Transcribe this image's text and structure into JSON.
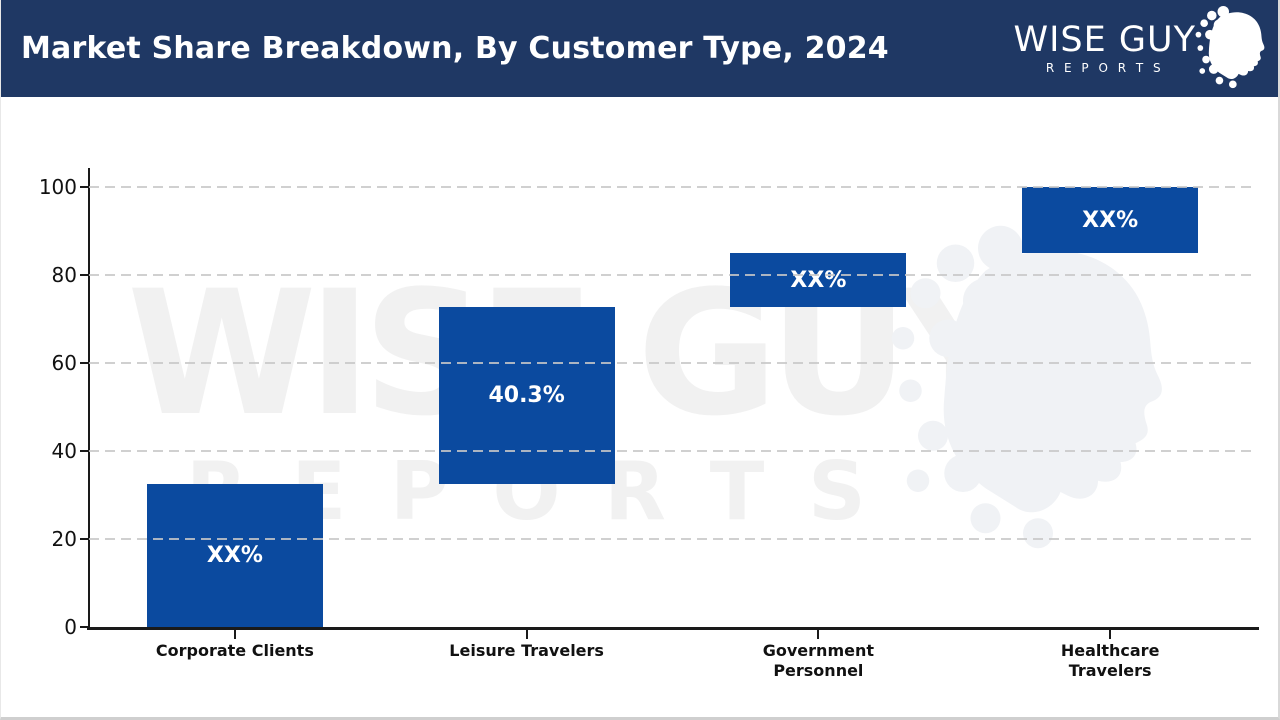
{
  "header": {
    "title": "Market Share Breakdown, By Customer Type, 2024",
    "bg_color": "#1f3864",
    "logo": {
      "wordmark": "WISE GUY",
      "subtext": "R E P O R T S",
      "icon": "face-profile-dots-icon"
    }
  },
  "watermark": {
    "line1": "WISE GUY",
    "line2": "R E P O R T S"
  },
  "chart_data": {
    "type": "bar",
    "subtype": "waterfall",
    "title": "Market Share Breakdown, By Customer Type, 2024",
    "xlabel": "",
    "ylabel": "",
    "ylim": [
      0,
      100
    ],
    "yticks": [
      0,
      20,
      40,
      60,
      80,
      100
    ],
    "grid": "horizontal-dashed",
    "legend": "none",
    "bar_color": "#0b4a9f",
    "value_label_color": "#ffffff",
    "categories": [
      "Corporate Clients",
      "Leisure Travelers",
      "Government Personnel",
      "Healthcare Travelers"
    ],
    "bars": [
      {
        "category": "Corporate Clients",
        "category_lines": [
          "Corporate Clients"
        ],
        "start": 0,
        "end": 32.4,
        "value": 32.4,
        "label": "XX%"
      },
      {
        "category": "Leisure Travelers",
        "category_lines": [
          "Leisure Travelers"
        ],
        "start": 32.4,
        "end": 72.7,
        "value": 40.3,
        "label": "40.3%"
      },
      {
        "category": "Government Personnel",
        "category_lines": [
          "Government",
          "Personnel"
        ],
        "start": 72.7,
        "end": 84.9,
        "value": 12.2,
        "label": "XX%"
      },
      {
        "category": "Healthcare Travelers",
        "category_lines": [
          "Healthcare",
          "Travelers"
        ],
        "start": 84.9,
        "end": 100.0,
        "value": 15.1,
        "label": "XX%"
      }
    ]
  }
}
